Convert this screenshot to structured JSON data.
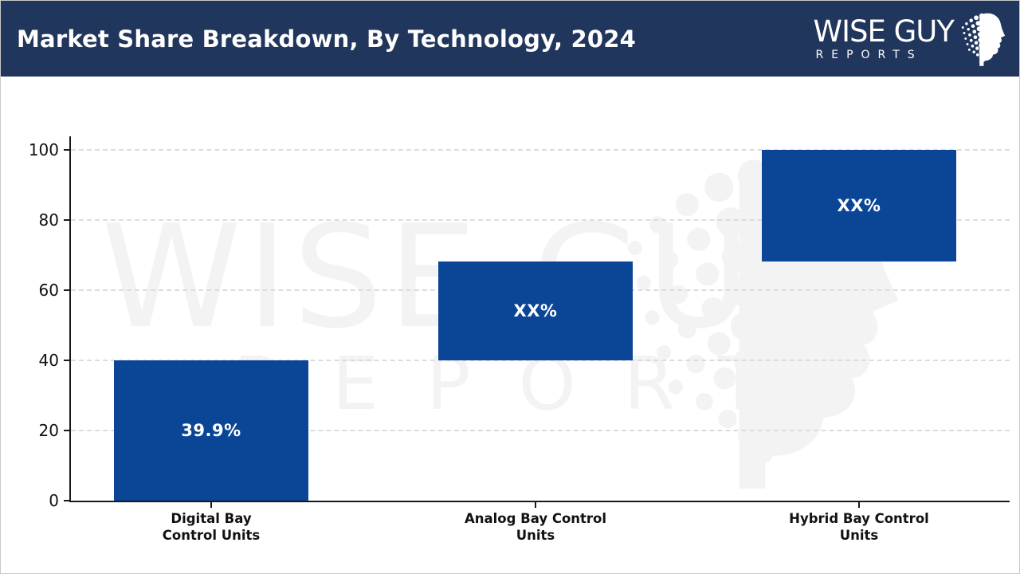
{
  "header": {
    "title": "Market Share Breakdown, By Technology, 2024",
    "bg_color": "#21365c",
    "logo": {
      "line1": "WISE GUY",
      "line2": "REPORTS"
    }
  },
  "watermark": {
    "line1": "WISE GUY",
    "line2": "REPORTS"
  },
  "chart_data": {
    "type": "bar",
    "subtype": "waterfall",
    "title": "Market Share Breakdown, By Technology, 2024",
    "categories": [
      "Digital Bay Control Units",
      "Analog Bay Control Units",
      "Hybrid Bay Control Units"
    ],
    "categories_wrapped": [
      [
        "Digital Bay",
        "Control Units"
      ],
      [
        "Analog Bay Control",
        "Units"
      ],
      [
        "Hybrid Bay Control",
        "Units"
      ]
    ],
    "segments": [
      {
        "category": "Digital Bay Control Units",
        "start": 0,
        "end": 39.9,
        "label": "39.9%"
      },
      {
        "category": "Analog Bay Control Units",
        "start": 39.9,
        "end": 68.2,
        "label": "XX%"
      },
      {
        "category": "Hybrid Bay Control Units",
        "start": 68.2,
        "end": 100,
        "label": "XX%"
      }
    ],
    "xlabel": "",
    "ylabel": "",
    "ylim": [
      0,
      103.8
    ],
    "yticks": [
      0,
      20,
      40,
      60,
      80,
      100
    ],
    "grid": "horizontal-dashed",
    "legend": "none",
    "bar_color": "#0b4596",
    "bar_label_color": "#ffffff",
    "grid_color": "#dcdcdc",
    "axis_color": "#1a1a1a"
  }
}
